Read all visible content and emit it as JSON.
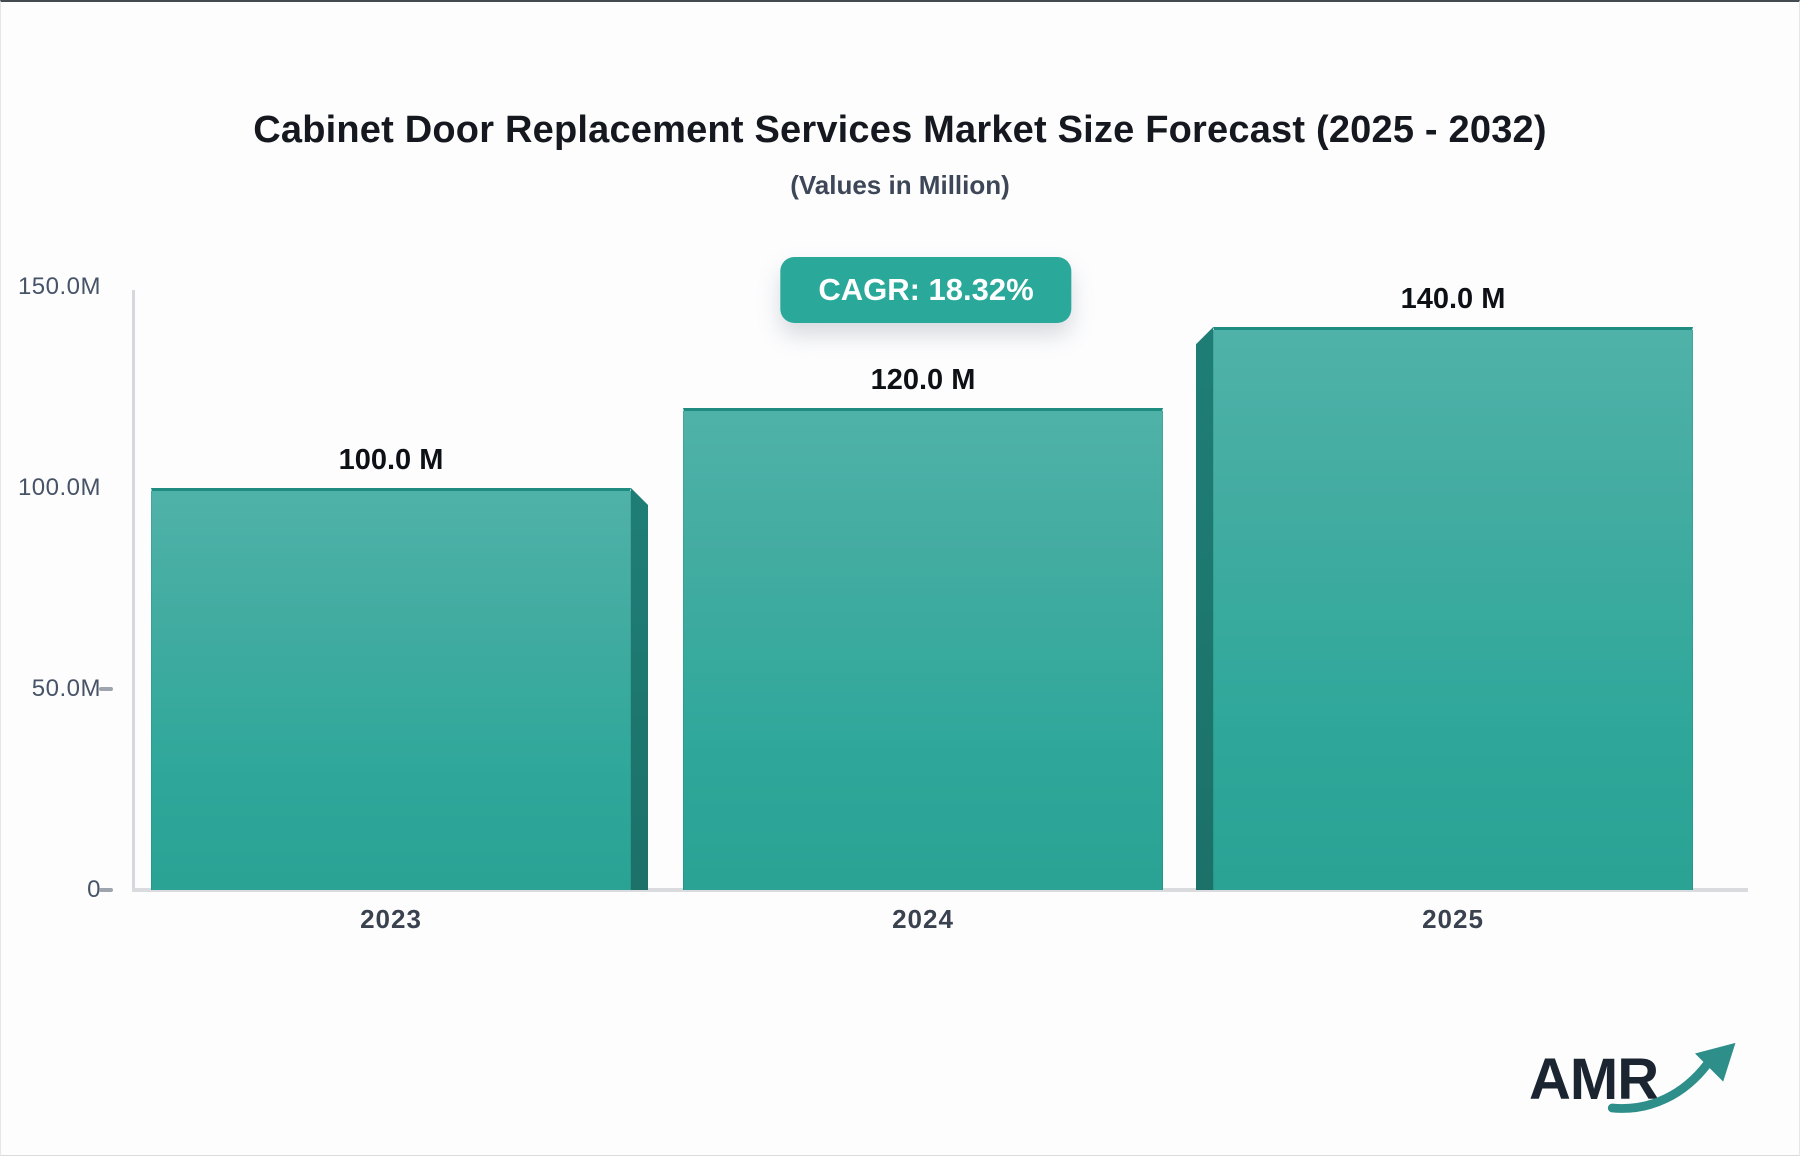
{
  "chart_data": {
    "type": "bar",
    "title": "Cabinet Door Replacement Services Market Size Forecast (2025 - 2032)",
    "subtitle": "(Values in Million)",
    "unit": "Million",
    "annotation": "CAGR: 18.32%",
    "cagr_percent": 18.32,
    "categories": [
      "2023",
      "2024",
      "2025"
    ],
    "values": [
      100.0,
      120.0,
      140.0
    ],
    "bar_labels": [
      "100.0 M",
      "120.0 M",
      "140.0 M"
    ],
    "ylim": [
      0,
      150
    ],
    "yticks": [
      {
        "value": 150,
        "label": "150.0M"
      },
      {
        "value": 100,
        "label": "100.0M"
      },
      {
        "value": 50,
        "label": "50.0M"
      },
      {
        "value": 0,
        "label": "0"
      }
    ],
    "grid": false,
    "legend": false,
    "bar_effect": "3d-bevel"
  },
  "logo": {
    "text": "AMR",
    "arrow_icon": "growth-arrow-icon"
  },
  "colors": {
    "accent_teal": "#2aa99b",
    "bar_face_top": "#4fb2a9",
    "bar_face_bottom": "#2aa294",
    "bar_side_dark": "#1e7e76",
    "axis_line": "#d6d8dd",
    "axis_text": "#475367",
    "title_text": "#15191f",
    "logo_text": "#1b2531",
    "logo_arrow": "#2e8e89"
  }
}
